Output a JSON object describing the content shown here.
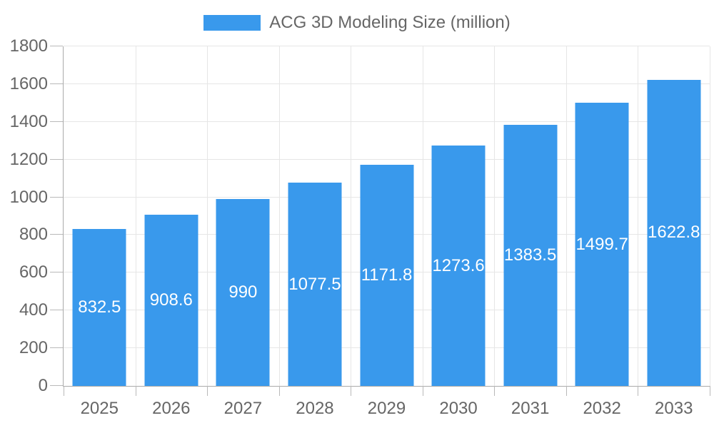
{
  "chart": {
    "legend": {
      "label": "ACG 3D Modeling Size (million)"
    },
    "colors": {
      "bar": "#3999EC",
      "grid": "#E6E6E6",
      "axis": "#AAAAAA",
      "tick": "#B9B9B9",
      "label": "#666666",
      "value_label": "#FFFFFF",
      "background": "#FFFFFF"
    }
  },
  "chart_data": {
    "type": "bar",
    "title": "",
    "series_name": "ACG 3D Modeling Size (million)",
    "categories": [
      "2025",
      "2026",
      "2027",
      "2028",
      "2029",
      "2030",
      "2031",
      "2032",
      "2033"
    ],
    "values": [
      832.5,
      908.6,
      990,
      1077.5,
      1171.8,
      1273.6,
      1383.5,
      1499.7,
      1622.8
    ],
    "value_labels": [
      "832.5",
      "908.6",
      "990",
      "1077.5",
      "1171.8",
      "1273.6",
      "1383.5",
      "1499.7",
      "1622.8"
    ],
    "xlabel": "",
    "ylabel": "",
    "ylim": [
      0,
      1800
    ],
    "yticks": [
      0,
      200,
      400,
      600,
      800,
      1000,
      1200,
      1400,
      1600,
      1800
    ],
    "grid": true,
    "legend_position": "top",
    "value_label_position": "center-inside"
  }
}
